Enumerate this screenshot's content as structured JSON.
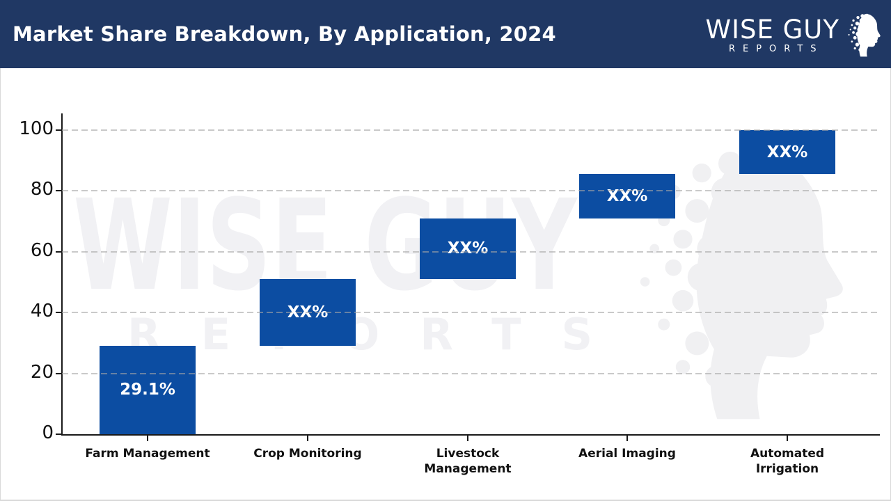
{
  "header": {
    "title": "Market Share Breakdown, By Application, 2024",
    "logo": {
      "line1": "WISE GUY",
      "line2": "REPORTS"
    }
  },
  "watermark": {
    "line1": "WISE GUY",
    "line2": "REPORTS"
  },
  "chart_data": {
    "type": "bar",
    "subtype": "waterfall",
    "title": "Market Share Breakdown, By Application, 2024",
    "unit": "%",
    "categories": [
      "Farm Management",
      "Crop Monitoring",
      "Livestock Management",
      "Aerial Imaging",
      "Automated Irrigation"
    ],
    "segments": [
      {
        "category": "Farm Management",
        "start": 0,
        "end": 29.1,
        "value": 29.1,
        "label": "29.1%"
      },
      {
        "category": "Crop Monitoring",
        "start": 29.1,
        "end": 51,
        "value": 21.9,
        "label": "XX%"
      },
      {
        "category": "Livestock Management",
        "start": 51,
        "end": 71,
        "value": 20,
        "label": "XX%"
      },
      {
        "category": "Aerial Imaging",
        "start": 71,
        "end": 85.5,
        "value": 14.5,
        "label": "XX%"
      },
      {
        "category": "Automated Irrigation",
        "start": 85.5,
        "end": 100,
        "value": 14.5,
        "label": "XX%"
      }
    ],
    "y_ticks": [
      0,
      20,
      40,
      60,
      80,
      100
    ],
    "ylim": [
      0,
      105
    ],
    "grid": true,
    "grid_style": "dashed",
    "legend": "none"
  },
  "colors": {
    "header_bg": "#203864",
    "bar": "#0c4da2",
    "bar_label": "#ffffff",
    "axis": "#1a1a1a",
    "grid": "#c9c9c9",
    "watermark": "#f1f1f4",
    "border": "#d9d9d9"
  }
}
